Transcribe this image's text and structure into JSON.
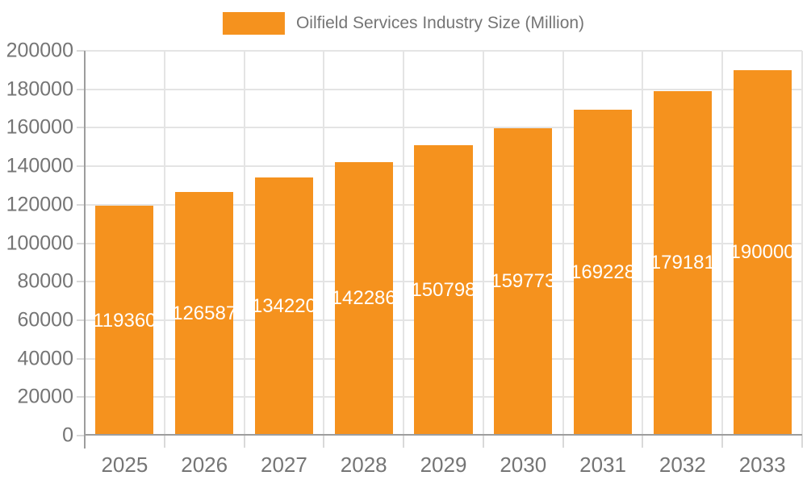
{
  "legend": {
    "label": "Oilfield Services Industry Size (Million)"
  },
  "chart_data": {
    "type": "bar",
    "title": "Oilfield Services Industry Size (Million)",
    "series_name": "Oilfield Services Industry Size (Million)",
    "categories": [
      "2025",
      "2026",
      "2027",
      "2028",
      "2029",
      "2030",
      "2031",
      "2032",
      "2033"
    ],
    "values": [
      119360,
      126587,
      134220,
      142286,
      150798,
      159773,
      169228,
      179181,
      190000
    ],
    "xlabel": "",
    "ylabel": "",
    "ylim": [
      0,
      200000
    ],
    "ytick_step": 20000,
    "ytick_labels": [
      "0",
      "20000",
      "40000",
      "60000",
      "80000",
      "100000",
      "120000",
      "140000",
      "160000",
      "180000",
      "200000"
    ],
    "grid": true,
    "legend_position": "top-center",
    "value_labels_inside_bars": true
  },
  "colors": {
    "bar": "#F5921E",
    "value_label": "#FFFFFF",
    "axis_line": "#9D9D9D",
    "gridline": "#E4E4E4",
    "tick": "#D9D9D9",
    "axis_label": "#757575",
    "legend_label": "#757575",
    "background": "#FFFFFF"
  }
}
